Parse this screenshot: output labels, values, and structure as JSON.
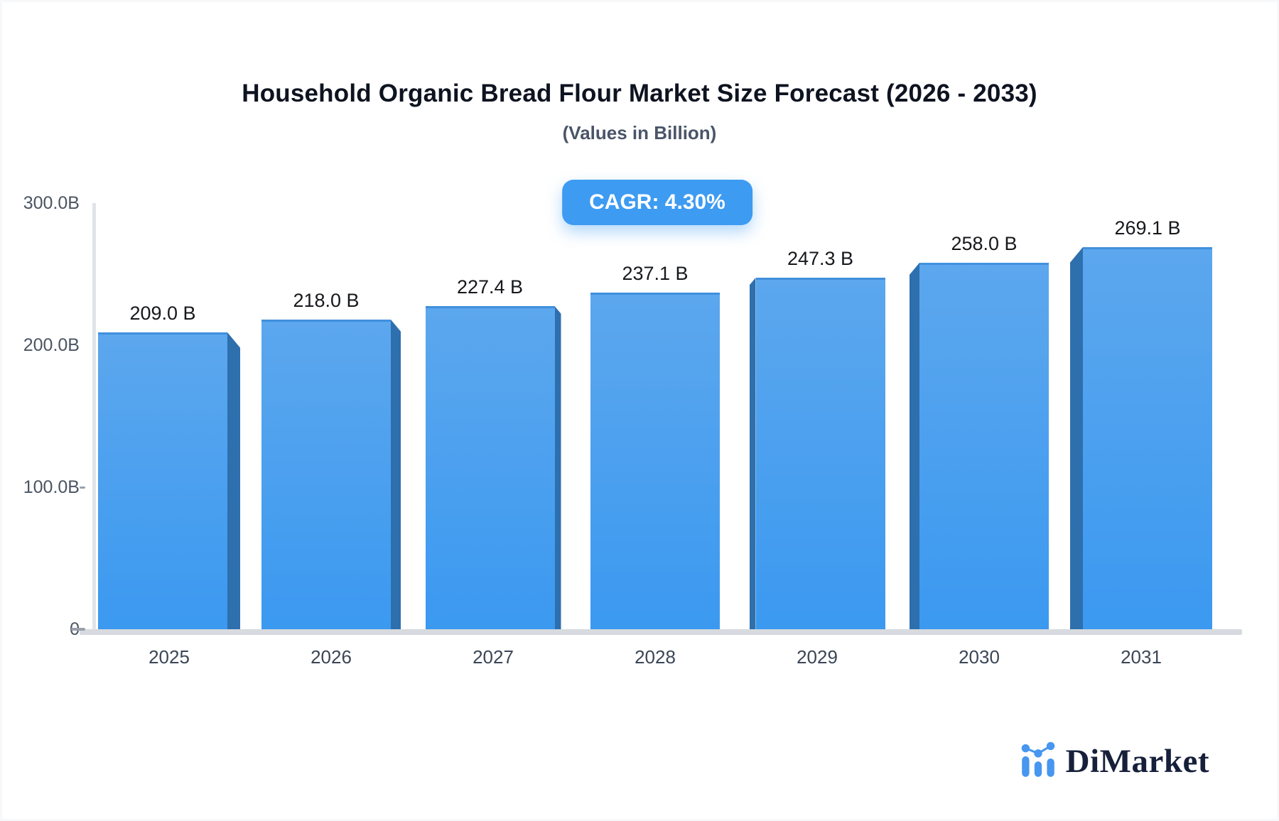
{
  "header": {
    "title": "Household Organic Bread Flour Market Size Forecast (2026 - 2033)",
    "subtitle": "(Values in Billion)",
    "cagr_badge": "CAGR: 4.30%"
  },
  "chart_data": {
    "type": "bar",
    "title": "Household Organic Bread Flour Market Size Forecast (2026 - 2033)",
    "subtitle": "(Values in Billion)",
    "unit": "Billion",
    "cagr": "4.30%",
    "categories": [
      "2025",
      "2026",
      "2027",
      "2028",
      "2029",
      "2030",
      "2031"
    ],
    "values": [
      209.0,
      218.0,
      227.4,
      237.1,
      247.3,
      258.0,
      269.1
    ],
    "bar_labels": [
      "209.0 B",
      "218.0 B",
      "227.4 B",
      "237.1 B",
      "247.3 B",
      "258.0 B",
      "269.1 B"
    ],
    "xlabel": "",
    "ylabel": "",
    "ylim": [
      0,
      300
    ],
    "y_ticks": [
      {
        "value": 300,
        "label": "300.0B"
      },
      {
        "value": 200,
        "label": "200.0B"
      },
      {
        "value": 100,
        "label": "100.0B"
      },
      {
        "value": 0,
        "label": "0"
      }
    ],
    "grid": false,
    "legend": "none",
    "style": "3d-perspective-bars"
  },
  "footer": {
    "logo_text": "DiMarket"
  },
  "colors": {
    "badge-bg": "#3d9bf2",
    "bar-front-top": "#5ca7ee",
    "bar-front-bottom": "#3b99f0",
    "bar-side": "#2e6fae",
    "bar-top-edge": "#4190dd",
    "axis-line": "#e0e3e8",
    "baseline": "#d7dade",
    "logo-blue": "#4796ef",
    "logo-navy": "#16203a"
  }
}
